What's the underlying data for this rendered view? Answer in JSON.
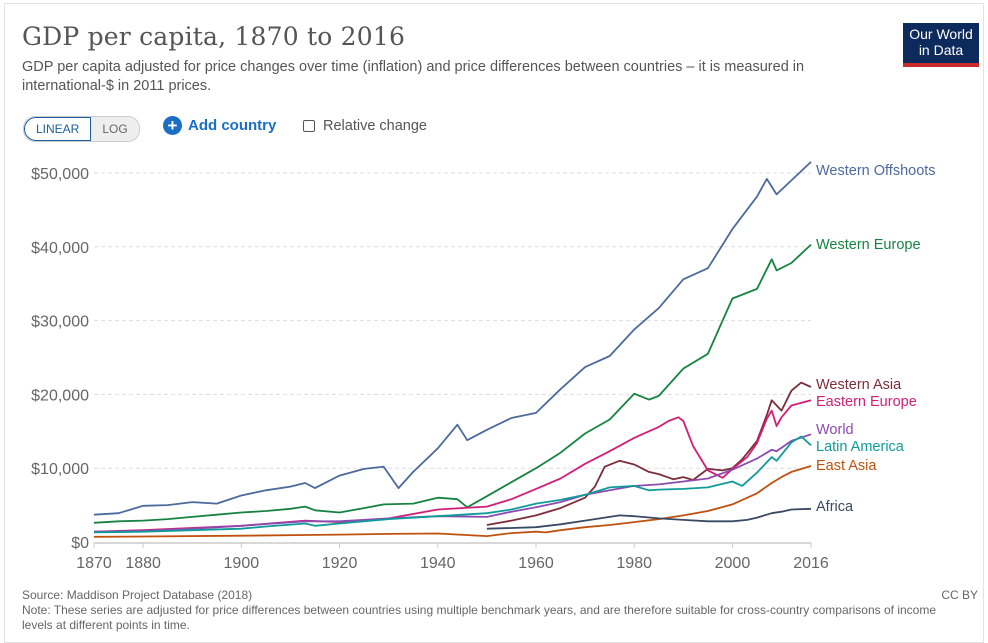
{
  "header": {
    "title": "GDP per capita, 1870 to 2016",
    "subtitle": "GDP per capita adjusted for price changes over time (inflation) and price differences between countries – it is measured in international-$ in 2011 prices.",
    "logo_line1": "Our World",
    "logo_line2": "in Data"
  },
  "controls": {
    "linear_label": "LINEAR",
    "log_label": "LOG",
    "active_scale": "LINEAR",
    "add_country_label": "Add country",
    "relative_change_label": "Relative change",
    "relative_change_checked": false
  },
  "footer": {
    "source": "Source: Maddison Project Database (2018)",
    "note": "Note: These series are adjusted for price differences between countries using multiple benchmark years, and are therefore suitable for cross-country comparisons of income levels at different points in time.",
    "license": "CC BY"
  },
  "chart_data": {
    "type": "line",
    "title": "GDP per capita, 1870 to 2016",
    "xlabel": "",
    "ylabel": "",
    "xlim": [
      1870,
      2016
    ],
    "ylim": [
      0,
      50000
    ],
    "grid": true,
    "legend": "inline-right",
    "x_ticks": [
      1870,
      1880,
      1900,
      1920,
      1940,
      1960,
      1980,
      2000,
      2016
    ],
    "x_tick_labels": [
      "1870",
      "1880",
      "1900",
      "1920",
      "1940",
      "1960",
      "1980",
      "2000",
      "2016"
    ],
    "y_ticks": [
      0,
      10000,
      20000,
      30000,
      40000,
      50000
    ],
    "y_tick_labels": [
      "$0",
      "$10,000",
      "$20,000",
      "$30,000",
      "$40,000",
      "$50,000"
    ],
    "series": [
      {
        "name": "Western Offshoots",
        "color": "#4c6a9c",
        "x": [
          1870,
          1875,
          1880,
          1885,
          1890,
          1895,
          1900,
          1905,
          1910,
          1913,
          1915,
          1920,
          1925,
          1929,
          1932,
          1935,
          1940,
          1944,
          1946,
          1950,
          1955,
          1960,
          1965,
          1970,
          1975,
          1980,
          1985,
          1990,
          1995,
          2000,
          2005,
          2007,
          2009,
          2012,
          2016
        ],
        "y": [
          3700,
          3900,
          4900,
          5000,
          5400,
          5200,
          6300,
          7000,
          7500,
          8000,
          7300,
          9000,
          9900,
          10200,
          7300,
          9500,
          12700,
          15900,
          13800,
          15200,
          16800,
          17500,
          20700,
          23700,
          25200,
          28800,
          31700,
          35600,
          37100,
          42400,
          46800,
          49200,
          47100,
          49000,
          51500
        ]
      },
      {
        "name": "Western Europe",
        "color": "#178342",
        "x": [
          1870,
          1875,
          1880,
          1885,
          1890,
          1895,
          1900,
          1905,
          1910,
          1913,
          1915,
          1920,
          1925,
          1929,
          1935,
          1940,
          1944,
          1946,
          1950,
          1955,
          1960,
          1965,
          1970,
          1975,
          1980,
          1983,
          1985,
          1990,
          1995,
          2000,
          2005,
          2008,
          2009,
          2012,
          2016
        ],
        "y": [
          2600,
          2800,
          2900,
          3100,
          3400,
          3700,
          4000,
          4200,
          4500,
          4800,
          4300,
          4000,
          4600,
          5100,
          5200,
          6000,
          5800,
          4700,
          6200,
          8100,
          10000,
          12100,
          14700,
          16600,
          20100,
          19300,
          19800,
          23500,
          25500,
          33000,
          34300,
          38300,
          36800,
          37800,
          40300
        ]
      },
      {
        "name": "Western Asia",
        "color": "#7c2d3a",
        "x": [
          1950,
          1955,
          1960,
          1965,
          1970,
          1972,
          1974,
          1977,
          1980,
          1983,
          1985,
          1988,
          1990,
          1992,
          1995,
          1998,
          2000,
          2002,
          2005,
          2007,
          2008,
          2010,
          2012,
          2014,
          2016
        ],
        "y": [
          2300,
          2900,
          3600,
          4600,
          6000,
          7500,
          10200,
          11000,
          10500,
          9500,
          9200,
          8500,
          8800,
          8400,
          9900,
          9700,
          10000,
          11200,
          13700,
          17200,
          19200,
          17800,
          20500,
          21600,
          21000
        ]
      },
      {
        "name": "Eastern Europe",
        "color": "#d21e76",
        "x": [
          1870,
          1880,
          1900,
          1913,
          1920,
          1930,
          1940,
          1950,
          1955,
          1960,
          1965,
          1970,
          1975,
          1980,
          1985,
          1987,
          1989,
          1990,
          1992,
          1995,
          1998,
          2000,
          2003,
          2005,
          2007,
          2008,
          2009,
          2010,
          2012,
          2016
        ],
        "y": [
          1400,
          1600,
          2200,
          2900,
          2700,
          3200,
          4400,
          4800,
          5800,
          7200,
          8600,
          10600,
          12300,
          14100,
          15600,
          16400,
          16900,
          16400,
          13000,
          9700,
          8700,
          9900,
          11500,
          13400,
          16700,
          17800,
          15700,
          16900,
          18500,
          19200
        ]
      },
      {
        "name": "World",
        "color": "#8c4bb1",
        "x": [
          1870,
          1880,
          1890,
          1900,
          1913,
          1920,
          1930,
          1940,
          1950,
          1955,
          1960,
          1965,
          1970,
          1975,
          1980,
          1985,
          1990,
          1995,
          2000,
          2005,
          2008,
          2009,
          2012,
          2016
        ],
        "y": [
          1400,
          1500,
          1800,
          2200,
          2800,
          2800,
          3200,
          3500,
          3400,
          4100,
          4700,
          5400,
          6400,
          7000,
          7600,
          7800,
          8200,
          8600,
          9800,
          11300,
          12500,
          12300,
          13700,
          14600
        ]
      },
      {
        "name": "Latin America",
        "color": "#109b9b",
        "x": [
          1870,
          1880,
          1890,
          1900,
          1905,
          1913,
          1915,
          1920,
          1930,
          1940,
          1950,
          1955,
          1960,
          1965,
          1970,
          1975,
          1980,
          1983,
          1985,
          1990,
          1995,
          2000,
          2002,
          2005,
          2008,
          2009,
          2012,
          2014,
          2016
        ],
        "y": [
          1300,
          1400,
          1600,
          1800,
          2100,
          2500,
          2200,
          2500,
          3100,
          3500,
          3900,
          4400,
          5200,
          5700,
          6400,
          7400,
          7600,
          7000,
          7100,
          7200,
          7400,
          8200,
          7600,
          9400,
          11500,
          11000,
          13500,
          14300,
          13100
        ]
      },
      {
        "name": "East Asia",
        "color": "#c0510e",
        "x": [
          1870,
          1880,
          1900,
          1913,
          1920,
          1930,
          1940,
          1950,
          1955,
          1960,
          1962,
          1965,
          1970,
          1975,
          1980,
          1985,
          1990,
          1995,
          2000,
          2005,
          2008,
          2010,
          2012,
          2016
        ],
        "y": [
          700,
          750,
          850,
          950,
          1000,
          1100,
          1150,
          800,
          1200,
          1400,
          1300,
          1600,
          2000,
          2300,
          2700,
          3100,
          3600,
          4200,
          5100,
          6600,
          8000,
          8800,
          9500,
          10300
        ]
      },
      {
        "name": "Africa",
        "color": "#3a4a63",
        "x": [
          1950,
          1955,
          1960,
          1965,
          1970,
          1975,
          1977,
          1980,
          1985,
          1990,
          1995,
          2000,
          2003,
          2005,
          2008,
          2010,
          2012,
          2016
        ],
        "y": [
          1800,
          1900,
          2000,
          2400,
          2900,
          3400,
          3600,
          3500,
          3200,
          3000,
          2800,
          2800,
          3000,
          3300,
          3900,
          4100,
          4400,
          4500
        ]
      }
    ]
  }
}
